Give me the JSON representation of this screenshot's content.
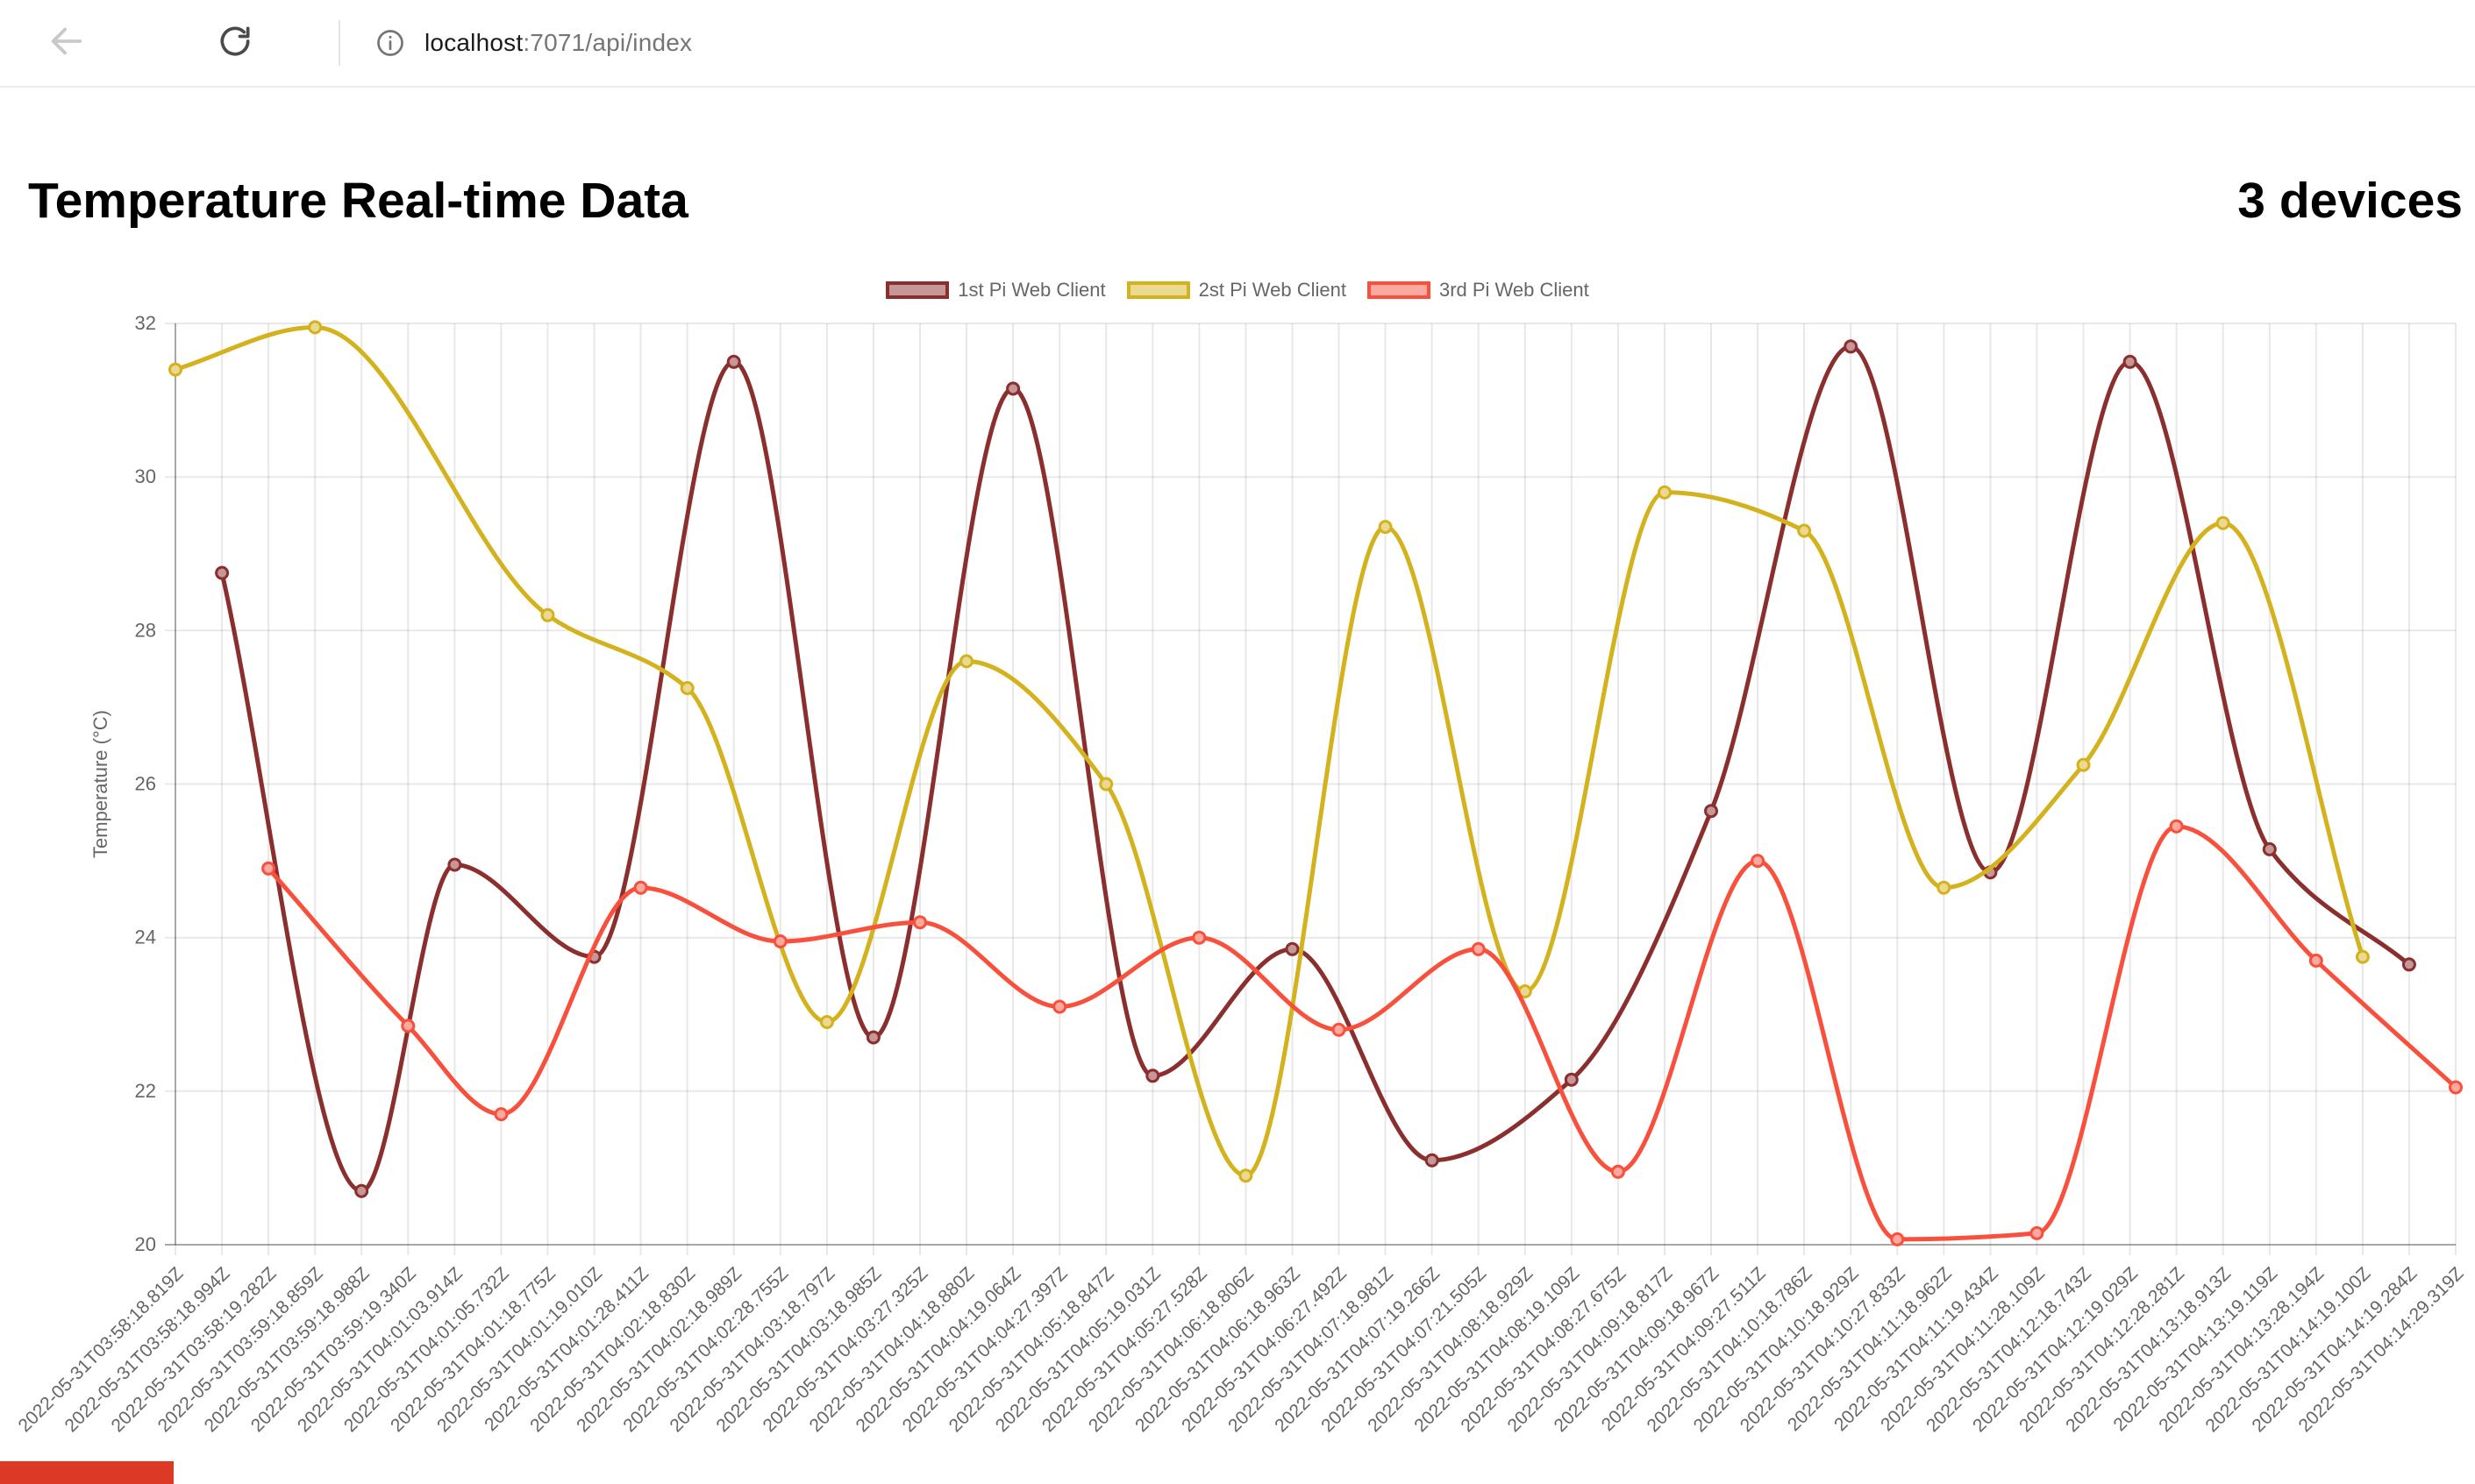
{
  "browser": {
    "url_host": "localhost",
    "url_path": ":7071/api/index"
  },
  "page": {
    "title": "Temperature Real-time Data",
    "device_count": "3 devices"
  },
  "chart_data": {
    "type": "line",
    "title": "Temperature Real-time Data",
    "xlabel": "",
    "ylabel": "Temperature (°C)",
    "ylim": [
      20,
      32
    ],
    "yticks": [
      20,
      22,
      24,
      26,
      28,
      30,
      32
    ],
    "grid": true,
    "legend_position": "top",
    "interpolation": "monotone",
    "categories": [
      "2022-05-31T03:58:18.819Z",
      "2022-05-31T03:58:18.994Z",
      "2022-05-31T03:58:19.282Z",
      "2022-05-31T03:59:18.859Z",
      "2022-05-31T03:59:18.988Z",
      "2022-05-31T03:59:19.340Z",
      "2022-05-31T04:01:03.914Z",
      "2022-05-31T04:01:05.732Z",
      "2022-05-31T04:01:18.775Z",
      "2022-05-31T04:01:19.010Z",
      "2022-05-31T04:01:28.411Z",
      "2022-05-31T04:02:18.830Z",
      "2022-05-31T04:02:18.989Z",
      "2022-05-31T04:02:28.755Z",
      "2022-05-31T04:03:18.797Z",
      "2022-05-31T04:03:18.985Z",
      "2022-05-31T04:03:27.325Z",
      "2022-05-31T04:04:18.880Z",
      "2022-05-31T04:04:19.064Z",
      "2022-05-31T04:04:27.397Z",
      "2022-05-31T04:05:18.847Z",
      "2022-05-31T04:05:19.031Z",
      "2022-05-31T04:05:27.528Z",
      "2022-05-31T04:06:18.806Z",
      "2022-05-31T04:06:18.963Z",
      "2022-05-31T04:06:27.492Z",
      "2022-05-31T04:07:18.981Z",
      "2022-05-31T04:07:19.266Z",
      "2022-05-31T04:07:21.505Z",
      "2022-05-31T04:08:18.929Z",
      "2022-05-31T04:08:19.109Z",
      "2022-05-31T04:08:27.675Z",
      "2022-05-31T04:09:18.817Z",
      "2022-05-31T04:09:18.967Z",
      "2022-05-31T04:09:27.511Z",
      "2022-05-31T04:10:18.786Z",
      "2022-05-31T04:10:18.929Z",
      "2022-05-31T04:10:27.833Z",
      "2022-05-31T04:11:18.962Z",
      "2022-05-31T04:11:19.434Z",
      "2022-05-31T04:11:28.109Z",
      "2022-05-31T04:12:18.743Z",
      "2022-05-31T04:12:19.029Z",
      "2022-05-31T04:12:28.281Z",
      "2022-05-31T04:13:18.913Z",
      "2022-05-31T04:13:19.119Z",
      "2022-05-31T04:13:28.194Z",
      "2022-05-31T04:14:19.100Z",
      "2022-05-31T04:14:19.284Z",
      "2022-05-31T04:14:29.319Z"
    ],
    "series": [
      {
        "name": "1st Pi Web Client",
        "color": "#8b2e2e",
        "point_fill": "#c59797",
        "x_indices": [
          1,
          4,
          6,
          9,
          12,
          15,
          18,
          21,
          24,
          27,
          30,
          33,
          36,
          39,
          42,
          45,
          48
        ],
        "values": [
          28.75,
          20.7,
          24.95,
          23.75,
          31.5,
          22.7,
          31.15,
          22.2,
          23.85,
          21.1,
          22.15,
          25.65,
          31.7,
          24.85,
          31.5,
          25.15,
          23.65
        ]
      },
      {
        "name": "2st Pi Web Client",
        "color": "#d4b21e",
        "point_fill": "#ead990",
        "x_indices": [
          0,
          3,
          8,
          11,
          14,
          17,
          20,
          23,
          26,
          29,
          32,
          35,
          38,
          41,
          44,
          47
        ],
        "values": [
          31.4,
          31.95,
          28.2,
          27.25,
          22.9,
          27.6,
          26.0,
          20.9,
          29.35,
          23.3,
          29.8,
          29.3,
          24.65,
          26.25,
          29.4,
          23.75
        ]
      },
      {
        "name": "3rd Pi Web Client",
        "color": "#f8503c",
        "point_fill": "#fcaaa0",
        "x_indices": [
          2,
          5,
          7,
          10,
          13,
          16,
          19,
          22,
          25,
          28,
          31,
          34,
          37,
          40,
          43,
          46,
          49
        ],
        "values": [
          24.9,
          22.85,
          21.7,
          24.65,
          23.95,
          24.2,
          23.1,
          24.0,
          22.8,
          23.85,
          20.95,
          25.0,
          20.07,
          20.15,
          25.45,
          23.7,
          22.05
        ]
      }
    ]
  },
  "misc": {
    "red_block_color": "#dc3a27",
    "grid_color": "rgba(0,0,0,0.09)",
    "axis_color": "rgba(0,0,0,0.28)",
    "tick_text_color": "#666666"
  }
}
